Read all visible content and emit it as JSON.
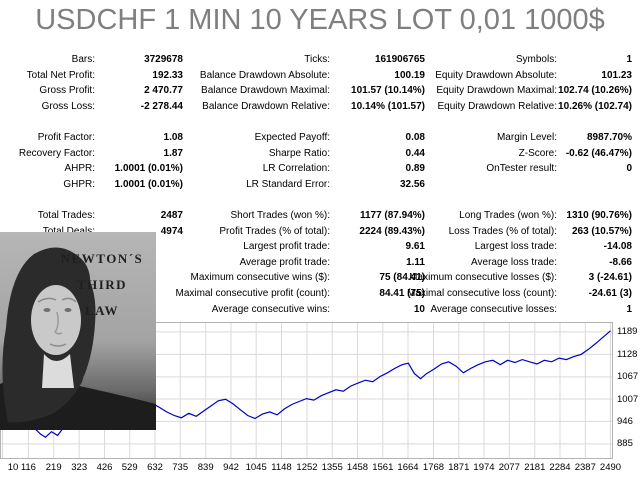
{
  "title": "USDCHF 1 MIN 10 YEARS LOT 0,01 1000$",
  "colors": {
    "title_text": "#7f7f7f",
    "balance_line": "#0000c8",
    "grid_line": "#dadada",
    "chart_frame": "#b3b3b3"
  },
  "stats": {
    "rows": [
      [
        "Bars:",
        "3729678",
        "Ticks:",
        "161906765",
        "Symbols:",
        "1"
      ],
      [
        "Total Net Profit:",
        "192.33",
        "Balance Drawdown Absolute:",
        "100.19",
        "Equity Drawdown Absolute:",
        "101.23"
      ],
      [
        "Gross Profit:",
        "2 470.77",
        "Balance Drawdown Maximal:",
        "101.57 (10.14%)",
        "Equity Drawdown Maximal:",
        "102.74 (10.26%)"
      ],
      [
        "Gross Loss:",
        "-2 278.44",
        "Balance Drawdown Relative:",
        "10.14% (101.57)",
        "Equity Drawdown Relative:",
        "10.26% (102.74)"
      ],
      [
        "",
        "",
        "",
        "",
        "",
        ""
      ],
      [
        "Profit Factor:",
        "1.08",
        "Expected Payoff:",
        "0.08",
        "Margin Level:",
        "8987.70%"
      ],
      [
        "Recovery Factor:",
        "1.87",
        "Sharpe Ratio:",
        "0.44",
        "Z-Score:",
        "-0.62 (46.47%)"
      ],
      [
        "AHPR:",
        "1.0001 (0.01%)",
        "LR Correlation:",
        "0.89",
        "OnTester result:",
        "0"
      ],
      [
        "GHPR:",
        "1.0001 (0.01%)",
        "LR Standard Error:",
        "32.56",
        "",
        ""
      ],
      [
        "",
        "",
        "",
        "",
        "",
        ""
      ],
      [
        "Total Trades:",
        "2487",
        "Short Trades (won %):",
        "1177 (87.94%)",
        "Long Trades (won %):",
        "1310 (90.76%)"
      ],
      [
        "Total Deals:",
        "4974",
        "Profit Trades (% of total):",
        "2224 (89.43%)",
        "Loss Trades (% of total):",
        "263 (10.57%)"
      ],
      [
        "",
        "",
        "Largest profit trade:",
        "9.61",
        "Largest loss trade:",
        "-14.08"
      ],
      [
        "",
        "",
        "Average profit trade:",
        "1.11",
        "Average loss trade:",
        "-8.66"
      ],
      [
        "",
        "",
        "Maximum consecutive wins ($):",
        "75 (84.41)",
        "Maximum consecutive losses ($):",
        "3 (-24.61)"
      ],
      [
        "",
        "",
        "Maximal consecutive profit (count):",
        "84.41 (75)",
        "Maximal consecutive loss (count):",
        "-24.61 (3)"
      ],
      [
        "",
        "",
        "Average consecutive wins:",
        "10",
        "Average consecutive losses:",
        "1"
      ]
    ]
  },
  "overlay_image": {
    "lines": [
      "NEWTON´S",
      "THIRD",
      "LAW"
    ]
  },
  "chart_data": {
    "type": "line",
    "title": "",
    "series_name": "Balance",
    "legend": false,
    "grid": true,
    "x_ticks": [
      10,
      116,
      219,
      323,
      426,
      529,
      632,
      735,
      839,
      942,
      1045,
      1148,
      1252,
      1355,
      1458,
      1561,
      1664,
      1768,
      1871,
      1974,
      2077,
      2181,
      2284,
      2387,
      2490
    ],
    "y_ticks": [
      885,
      946,
      1007,
      1067,
      1128,
      1189
    ],
    "xlim": [
      0,
      2500
    ],
    "ylim": [
      844,
      1216
    ],
    "line_color": "#0000c8",
    "points": {
      "x": [
        0,
        25,
        55,
        75,
        95,
        115,
        140,
        165,
        185,
        210,
        235,
        260,
        290,
        320,
        350,
        380,
        410,
        440,
        470,
        500,
        530,
        560,
        590,
        620,
        650,
        680,
        710,
        740,
        770,
        800,
        830,
        860,
        890,
        920,
        950,
        980,
        1010,
        1040,
        1070,
        1100,
        1130,
        1160,
        1190,
        1220,
        1250,
        1280,
        1310,
        1340,
        1370,
        1400,
        1430,
        1460,
        1490,
        1520,
        1550,
        1580,
        1610,
        1640,
        1665,
        1690,
        1715,
        1740,
        1770,
        1800,
        1830,
        1860,
        1890,
        1920,
        1950,
        1980,
        2010,
        2040,
        2070,
        2100,
        2130,
        2160,
        2190,
        2220,
        2250,
        2280,
        2310,
        2340,
        2370,
        2400,
        2430,
        2460,
        2490
      ],
      "y": [
        1000,
        988,
        962,
        940,
        928,
        942,
        928,
        912,
        903,
        918,
        908,
        930,
        948,
        944,
        962,
        958,
        986,
        1002,
        996,
        1010,
        1012,
        1004,
        1008,
        996,
        984,
        972,
        962,
        956,
        968,
        960,
        974,
        988,
        1002,
        1006,
        994,
        978,
        962,
        954,
        966,
        972,
        964,
        980,
        992,
        1000,
        1008,
        1004,
        1016,
        1024,
        1032,
        1028,
        1042,
        1050,
        1058,
        1054,
        1068,
        1078,
        1090,
        1100,
        1104,
        1076,
        1062,
        1076,
        1088,
        1102,
        1108,
        1096,
        1078,
        1090,
        1100,
        1108,
        1112,
        1100,
        1112,
        1106,
        1114,
        1108,
        1102,
        1112,
        1108,
        1118,
        1114,
        1122,
        1128,
        1142,
        1158,
        1175,
        1192
      ]
    }
  }
}
